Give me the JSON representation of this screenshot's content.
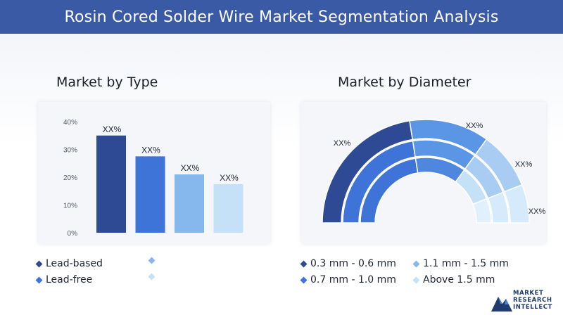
{
  "header": {
    "title": "Rosin Cored Solder Wire Market Segmentation Analysis"
  },
  "colors": {
    "header": "#3b5aa6",
    "c1": "#2e4a94",
    "c2": "#3e74d8",
    "c3": "#86b8ee",
    "c4": "#c4e1f8",
    "c5": "#a9cdf2"
  },
  "chart_data": [
    {
      "type": "bar",
      "title": "Market by Type",
      "categories": [
        "Lead-based",
        "Lead-free",
        "",
        ""
      ],
      "values": [
        35,
        27.5,
        21,
        17.5
      ],
      "data_labels": [
        "XX%",
        "XX%",
        "XX%",
        "XX%"
      ],
      "ylim": [
        0,
        40
      ],
      "yticks": [
        "0%",
        "10%",
        "20%",
        "30%",
        "40%"
      ],
      "ytick_values": [
        0,
        10,
        20,
        30,
        40
      ],
      "grid": false,
      "legend": [
        "Lead-based",
        "Lead-free",
        "",
        ""
      ]
    },
    {
      "type": "pie",
      "style": "half-donut",
      "title": "Market by Diameter",
      "categories": [
        "0.3 mm - 0.6 mm",
        "0.7 mm - 1.0 mm",
        "1.1 mm - 1.5 mm",
        "Above 1.5 mm"
      ],
      "values": [
        45,
        25,
        18,
        12
      ],
      "data_labels": [
        "XX%",
        "XX%",
        "XX%",
        "XX%"
      ],
      "legend": [
        "0.3 mm - 0.6 mm",
        "1.1 mm - 1.5 mm",
        "0.7 mm - 1.0 mm",
        "Above 1.5 mm"
      ]
    }
  ],
  "logo": {
    "line1": "MARKET",
    "line2": "RESEARCH",
    "line3": "INTELLECT"
  }
}
